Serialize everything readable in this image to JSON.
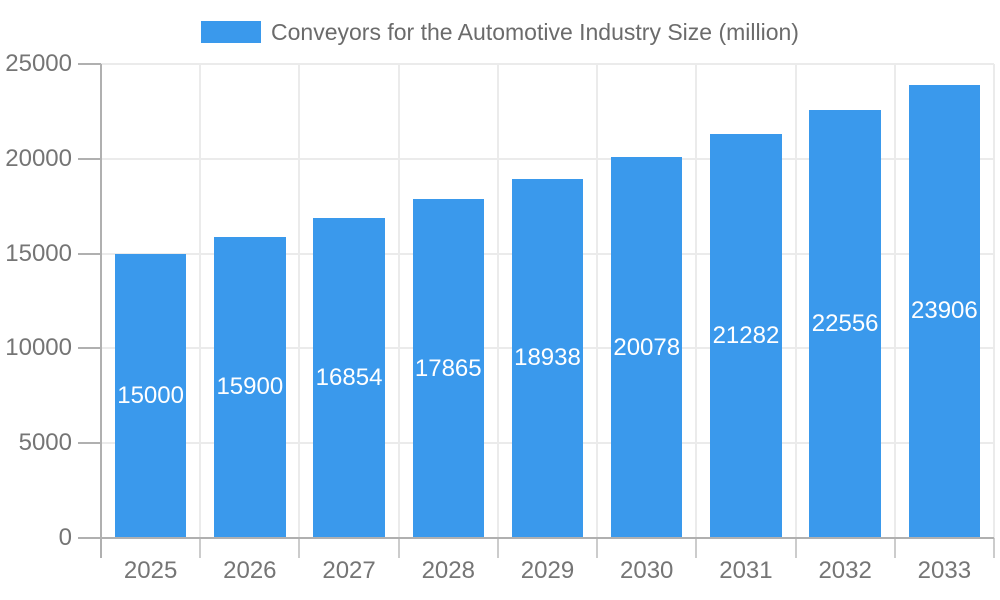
{
  "chart_data": {
    "type": "bar",
    "title": "Conveyors for the Automotive Industry Size (million)",
    "categories": [
      "2025",
      "2026",
      "2027",
      "2028",
      "2029",
      "2030",
      "2031",
      "2032",
      "2033"
    ],
    "series": [
      {
        "name": "Conveyors for the Automotive Industry Size (million)",
        "values": [
          15000,
          15900,
          16854,
          17865,
          18938,
          20078,
          21282,
          22556,
          23906
        ]
      }
    ],
    "xlabel": "",
    "ylabel": "",
    "ylim": [
      0,
      25000
    ],
    "yticks": [
      0,
      5000,
      10000,
      15000,
      20000,
      25000
    ],
    "grid": true,
    "legend_position": "top",
    "value_labels": "inside-center",
    "colors": {
      "bar": "#3A99EC",
      "grid_line": "#EBEBEB",
      "axis_line": "#B0B0B0",
      "tick_line": "#CCCCCC",
      "axis_text": "#757575",
      "legend_text": "#6B6B6B",
      "value_text": "#FFFFFF",
      "background": "#FFFFFF"
    }
  }
}
